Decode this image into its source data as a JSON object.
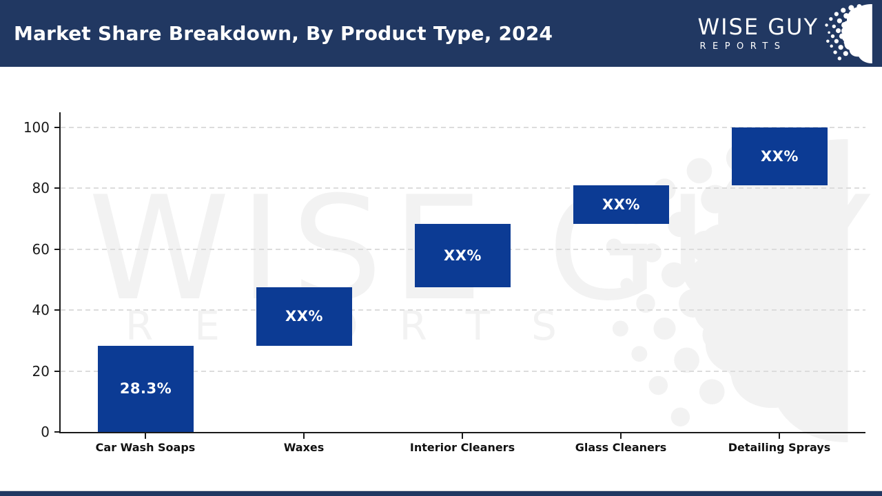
{
  "header": {
    "title": "Market Share Breakdown, By Product Type, 2024",
    "logo": {
      "name_line": "WISE GUY",
      "sub_line": "REPORTS"
    }
  },
  "watermark": {
    "line1": "WISE GUY",
    "line2": "REPORTS"
  },
  "colors": {
    "header_bg": "#213862",
    "footer_bg": "#213862",
    "bar": "#0c3b94",
    "bar_label": "#ffffff",
    "grid": "#dcdcdc",
    "axis": "#1a1a1a",
    "watermark": "#f2f2f2"
  },
  "chart_data": {
    "type": "bar",
    "subtype": "waterfall",
    "title": "Market Share Breakdown, By Product Type, 2024",
    "categories": [
      "Car Wash Soaps",
      "Waxes",
      "Interior Cleaners",
      "Glass Cleaners",
      "Detailing Sprays"
    ],
    "segments": [
      {
        "category": "Car Wash Soaps",
        "start": 0,
        "end": 28.3,
        "label": "28.3%"
      },
      {
        "category": "Waxes",
        "start": 28.3,
        "end": 47.5,
        "label": "XX%"
      },
      {
        "category": "Interior Cleaners",
        "start": 47.5,
        "end": 68.3,
        "label": "XX%"
      },
      {
        "category": "Glass Cleaners",
        "start": 68.3,
        "end": 80.9,
        "label": "XX%"
      },
      {
        "category": "Detailing Sprays",
        "start": 80.9,
        "end": 100,
        "label": "XX%"
      }
    ],
    "xlabel": "",
    "ylabel": "",
    "ylim": [
      0,
      100
    ],
    "yticks": [
      0,
      20,
      40,
      60,
      80,
      100
    ],
    "grid": "horizontal-dashed",
    "legend": "none",
    "bar_color": "#0c3b94"
  }
}
